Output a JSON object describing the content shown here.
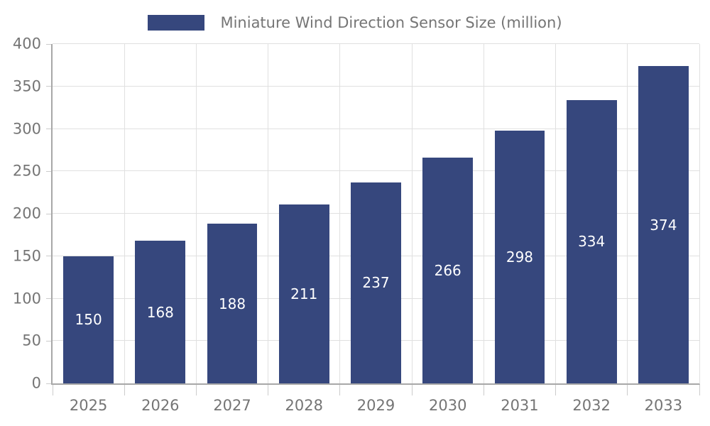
{
  "chart_data": {
    "type": "bar",
    "title": "Miniature Wind Direction Sensor Size (million)",
    "categories": [
      "2025",
      "2026",
      "2027",
      "2028",
      "2029",
      "2030",
      "2031",
      "2032",
      "2033"
    ],
    "values": [
      150,
      168,
      188,
      211,
      237,
      266,
      298,
      334,
      374
    ],
    "xlabel": "",
    "ylabel": "",
    "ylim": [
      0,
      400
    ],
    "yticks": [
      0,
      50,
      100,
      150,
      200,
      250,
      300,
      350,
      400
    ],
    "grid": true,
    "grid_horizontal": true,
    "grid_vertical": true,
    "legend_position": "top-center",
    "bar_width_fraction": 0.7,
    "value_labels_inside_bars": true
  },
  "colors": {
    "bar": "#36477d",
    "grid": "#e0e0e0",
    "axis": "#a8a8a8",
    "tick": "#cccccc",
    "text": "#757575",
    "value_label": "#ffffff",
    "background": "#ffffff"
  }
}
